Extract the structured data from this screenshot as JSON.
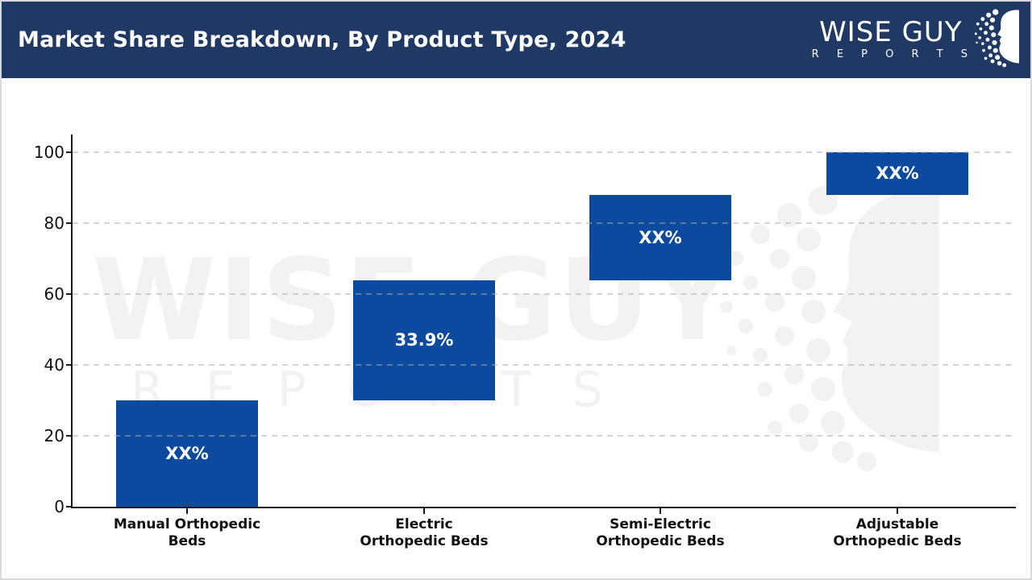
{
  "header": {
    "title": "Market Share Breakdown, By Product Type, 2024"
  },
  "logo": {
    "brand_line1": "WISE GUY",
    "brand_line2": "R E P O R T S"
  },
  "watermark": {
    "line1": "WISE GUY",
    "line2": "R E P O R T S"
  },
  "colors": {
    "header_bg": "#1f3864",
    "bar": "#0b4a9e",
    "bar_label": "#ffffff",
    "axis": "#1a1a1a",
    "gridline": "#dcdcdc",
    "watermark": "#f2f2f2",
    "frame": "#d9d9d9"
  },
  "chart_data": {
    "type": "bar",
    "subtype": "floating-waterfall-segments",
    "title": "Market Share Breakdown, By Product Type, 2024",
    "xlabel": "",
    "ylabel": "",
    "unit": "%",
    "ylim": [
      0,
      105
    ],
    "yticks": [
      0,
      20,
      40,
      60,
      80,
      100
    ],
    "grid": "horizontal dashed, drawn over bars",
    "legend": "none",
    "categories": [
      "Manual Orthopedic Beds",
      "Electric Orthopedic Beds",
      "Semi-Electric Orthopedic Beds",
      "Adjustable Orthopedic Beds"
    ],
    "category_lines": [
      [
        "Manual Orthopedic",
        "Beds"
      ],
      [
        "Electric",
        "Orthopedic Beds"
      ],
      [
        "Semi-Electric",
        "Orthopedic Beds"
      ],
      [
        "Adjustable",
        "Orthopedic Beds"
      ]
    ],
    "segments": [
      {
        "category": "Manual Orthopedic Beds",
        "start": 0,
        "end": 30,
        "label": "XX%"
      },
      {
        "category": "Electric Orthopedic Beds",
        "start": 30,
        "end": 63.9,
        "label": "33.9%",
        "value": 33.9
      },
      {
        "category": "Semi-Electric Orthopedic Beds",
        "start": 63.9,
        "end": 88,
        "label": "XX%"
      },
      {
        "category": "Adjustable Orthopedic Beds",
        "start": 88,
        "end": 100,
        "label": "XX%"
      }
    ]
  }
}
